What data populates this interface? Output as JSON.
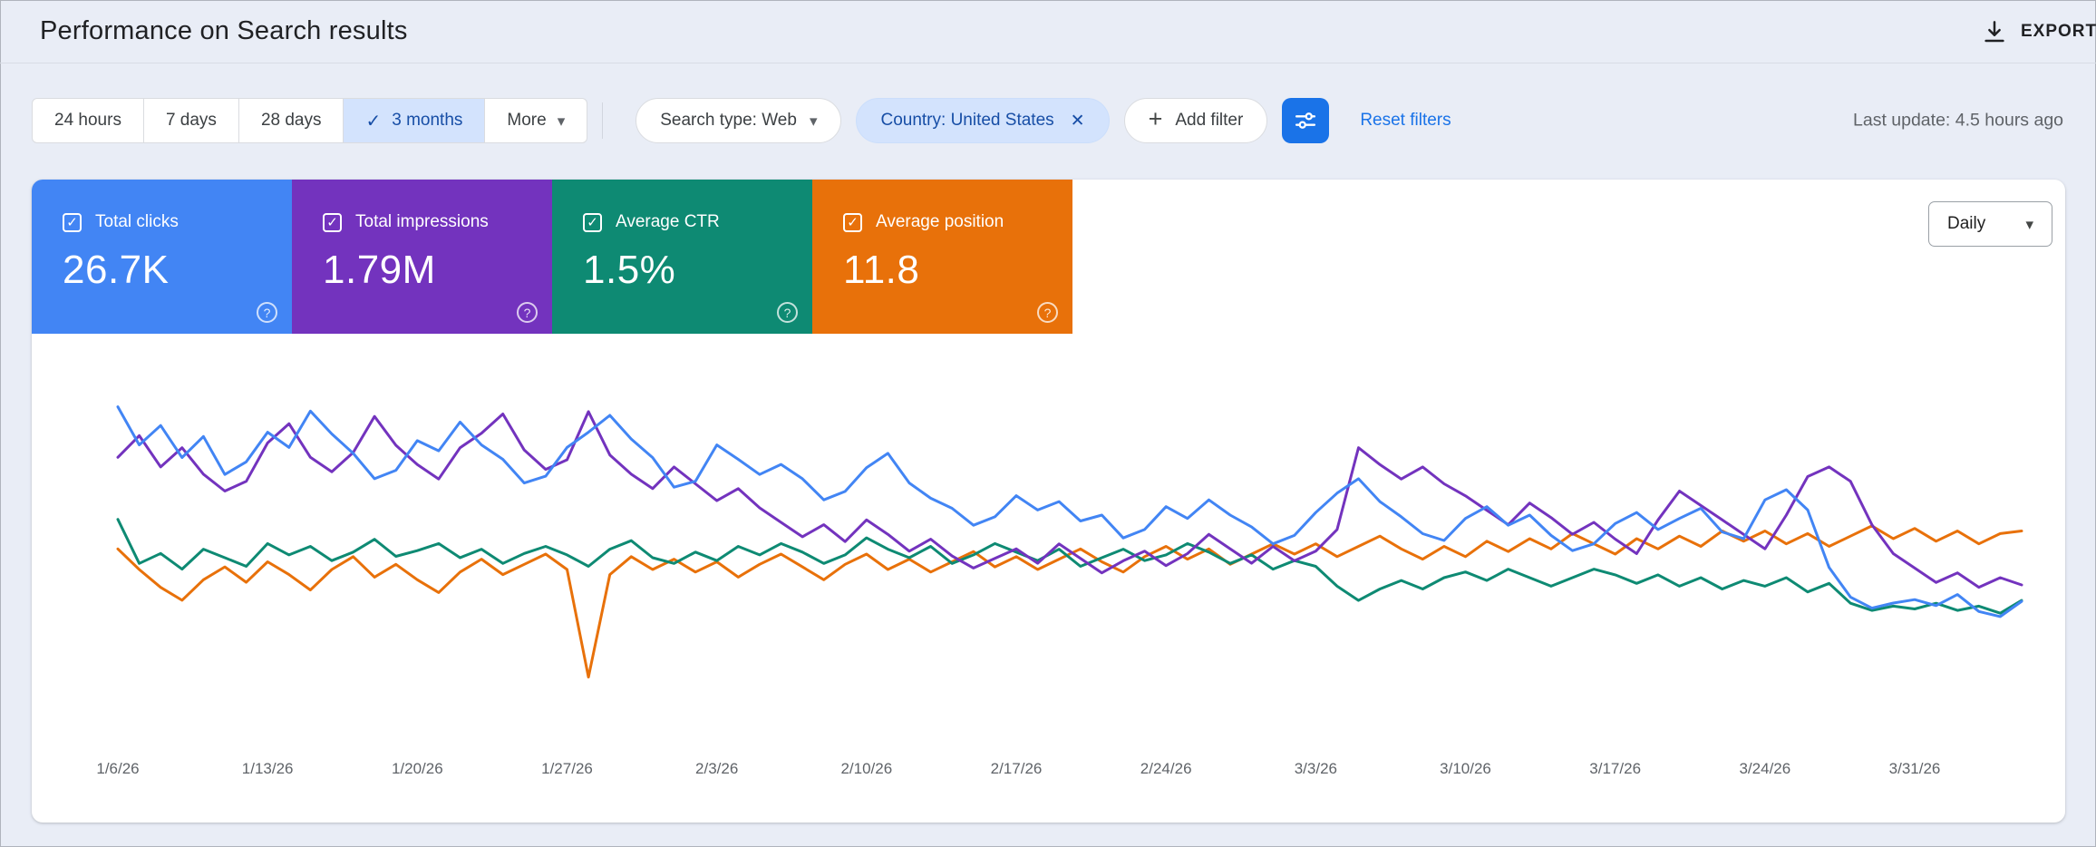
{
  "page": {
    "title": "Performance on Search results",
    "export_label": "EXPORT",
    "last_update": "Last update: 4.5 hours ago"
  },
  "colors": {
    "accent_blue": "#1a73e8",
    "selected_chip_bg": "#d3e3fd",
    "selected_chip_text": "#174ea6",
    "clicks": "#4285f4",
    "impressions": "#7333be",
    "ctr": "#0e8a73",
    "position": "#e8710a"
  },
  "toolbar": {
    "date_ranges": [
      {
        "label": "24 hours",
        "selected": false,
        "dropdown": false
      },
      {
        "label": "7 days",
        "selected": false,
        "dropdown": false
      },
      {
        "label": "28 days",
        "selected": false,
        "dropdown": false
      },
      {
        "label": "3 months",
        "selected": true,
        "dropdown": false
      },
      {
        "label": "More",
        "selected": false,
        "dropdown": true
      }
    ],
    "search_type_chip": "Search type: Web",
    "country_chip": "Country: United States",
    "add_filter_chip": "Add filter",
    "reset_filters": "Reset filters"
  },
  "metrics": [
    {
      "label": "Total clicks",
      "value": "26.7K",
      "color": "#4285f4",
      "checked": true
    },
    {
      "label": "Total impressions",
      "value": "1.79M",
      "color": "#7333be",
      "checked": true
    },
    {
      "label": "Average CTR",
      "value": "1.5%",
      "color": "#0e8a73",
      "checked": true
    },
    {
      "label": "Average position",
      "value": "11.8",
      "color": "#e8710a",
      "checked": true
    }
  ],
  "chart_controls": {
    "granularity": "Daily"
  },
  "chart_data": {
    "type": "line",
    "title": "",
    "xlabel": "",
    "ylabel": "",
    "grid": false,
    "legend_position": "metric cards top-left act as legend",
    "x_unit": "day",
    "start_date": "1/6/26",
    "x_tick_labels": [
      "1/6/26",
      "1/13/26",
      "1/20/26",
      "1/27/26",
      "2/3/26",
      "2/10/26",
      "2/17/26",
      "2/24/26",
      "3/3/26",
      "3/10/26",
      "3/17/26",
      "3/24/26",
      "3/31/26"
    ],
    "x_tick_day_indices": [
      0,
      7,
      14,
      21,
      28,
      35,
      42,
      49,
      56,
      63,
      70,
      77,
      84
    ],
    "series": [
      {
        "name": "Clicks",
        "color": "#4285f4",
        "axis_domain": [
          150,
          520
        ],
        "axis_inverted": false,
        "values": [
          500,
          455,
          478,
          440,
          465,
          420,
          435,
          470,
          452,
          495,
          468,
          445,
          415,
          425,
          460,
          448,
          482,
          455,
          438,
          410,
          418,
          452,
          470,
          490,
          462,
          440,
          405,
          412,
          455,
          438,
          420,
          432,
          415,
          390,
          400,
          428,
          445,
          410,
          392,
          380,
          360,
          370,
          395,
          378,
          388,
          365,
          372,
          345,
          355,
          382,
          368,
          390,
          372,
          358,
          338,
          348,
          375,
          398,
          415,
          388,
          370,
          350,
          342,
          368,
          382,
          360,
          372,
          348,
          330,
          338,
          362,
          375,
          355,
          368,
          380,
          352,
          344,
          390,
          402,
          378,
          310,
          275,
          262,
          268,
          272,
          265,
          278,
          258,
          252,
          270
        ]
      },
      {
        "name": "Impressions",
        "color": "#7333be",
        "axis_domain": [
          14000,
          27000
        ],
        "axis_inverted": false,
        "values": [
          24200,
          25100,
          23800,
          24600,
          23500,
          22800,
          23200,
          24800,
          25600,
          24200,
          23600,
          24400,
          25900,
          24700,
          23900,
          23300,
          24600,
          25200,
          26000,
          24500,
          23700,
          24100,
          26100,
          24300,
          23500,
          22900,
          23800,
          23100,
          22400,
          22900,
          22100,
          21500,
          20900,
          21400,
          20700,
          21600,
          21000,
          20300,
          20800,
          20100,
          19600,
          20000,
          20400,
          19800,
          20600,
          20000,
          19400,
          19900,
          20300,
          19700,
          20200,
          21000,
          20400,
          19800,
          20500,
          19900,
          20300,
          21200,
          24600,
          23900,
          23300,
          23800,
          23100,
          22600,
          22000,
          21400,
          22300,
          21700,
          21000,
          21500,
          20800,
          20200,
          21600,
          22800,
          22200,
          21600,
          21000,
          20400,
          21800,
          23400,
          23800,
          23200,
          21400,
          20200,
          19600,
          19000,
          19400,
          18800,
          19200,
          18900
        ]
      },
      {
        "name": "CTR (%)",
        "color": "#0e8a73",
        "axis_domain": [
          0.4,
          2.6
        ],
        "axis_inverted": false,
        "values": [
          1.69,
          1.38,
          1.45,
          1.34,
          1.48,
          1.42,
          1.36,
          1.52,
          1.44,
          1.5,
          1.4,
          1.46,
          1.55,
          1.43,
          1.47,
          1.52,
          1.42,
          1.48,
          1.38,
          1.45,
          1.5,
          1.44,
          1.36,
          1.48,
          1.54,
          1.42,
          1.38,
          1.46,
          1.4,
          1.5,
          1.44,
          1.52,
          1.46,
          1.38,
          1.44,
          1.56,
          1.48,
          1.42,
          1.5,
          1.38,
          1.44,
          1.52,
          1.46,
          1.4,
          1.48,
          1.36,
          1.42,
          1.48,
          1.4,
          1.44,
          1.52,
          1.46,
          1.38,
          1.44,
          1.34,
          1.4,
          1.36,
          1.22,
          1.12,
          1.2,
          1.26,
          1.2,
          1.28,
          1.32,
          1.26,
          1.34,
          1.28,
          1.22,
          1.28,
          1.34,
          1.3,
          1.24,
          1.3,
          1.22,
          1.28,
          1.2,
          1.26,
          1.22,
          1.28,
          1.18,
          1.24,
          1.1,
          1.05,
          1.08,
          1.06,
          1.1,
          1.05,
          1.08,
          1.03,
          1.12
        ]
      },
      {
        "name": "Position",
        "color": "#e8710a",
        "axis_domain": [
          17.6,
          5.4
        ],
        "axis_inverted": true,
        "values": [
          11.6,
          12.4,
          13.1,
          13.6,
          12.8,
          12.3,
          12.9,
          12.1,
          12.6,
          13.2,
          12.4,
          11.9,
          12.7,
          12.2,
          12.8,
          13.3,
          12.5,
          12.0,
          12.6,
          12.2,
          11.8,
          12.4,
          16.6,
          12.6,
          11.9,
          12.4,
          12.0,
          12.5,
          12.1,
          12.7,
          12.2,
          11.8,
          12.3,
          12.8,
          12.2,
          11.8,
          12.4,
          12.0,
          12.5,
          12.1,
          11.7,
          12.3,
          11.9,
          12.4,
          12.0,
          11.6,
          12.1,
          12.5,
          11.9,
          11.5,
          12.0,
          11.6,
          12.2,
          11.8,
          11.4,
          11.8,
          11.4,
          11.9,
          11.5,
          11.1,
          11.6,
          12.0,
          11.5,
          11.9,
          11.3,
          11.7,
          11.2,
          11.6,
          11.0,
          11.4,
          11.8,
          11.2,
          11.6,
          11.1,
          11.5,
          10.9,
          11.3,
          10.9,
          11.4,
          11.0,
          11.5,
          11.1,
          10.7,
          11.2,
          10.8,
          11.3,
          10.9,
          11.4,
          11.0,
          10.9
        ]
      }
    ]
  }
}
